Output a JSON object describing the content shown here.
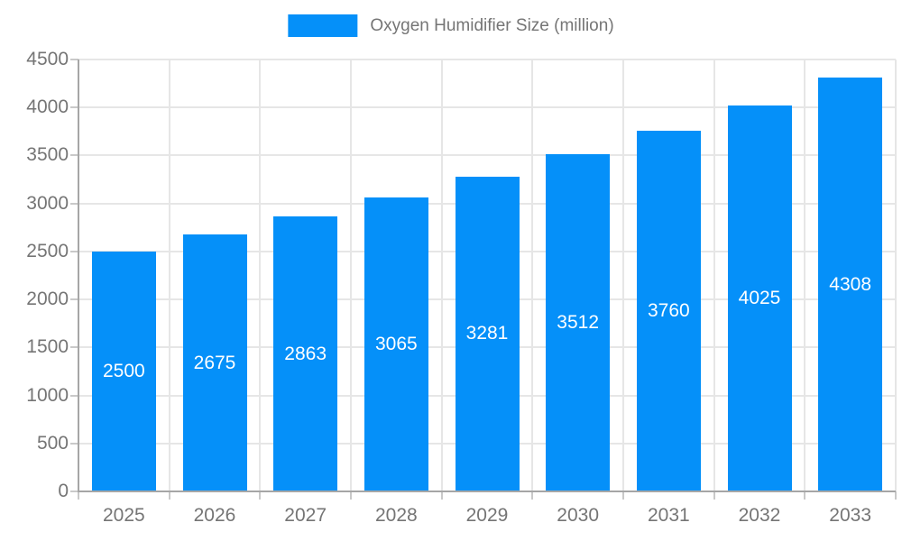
{
  "legend": {
    "label": "Oxygen Humidifier Size (million)"
  },
  "colors": {
    "bar": "#0590f9",
    "bar_label": "#ffffff",
    "axis_text": "#757575",
    "gridline": "#e6e6e6",
    "axis_line": "#a6a6a6"
  },
  "chart_data": {
    "type": "bar",
    "title": "",
    "legend_entries": [
      "Oxygen Humidifier Size (million)"
    ],
    "legend_position": "top",
    "categories": [
      "2025",
      "2026",
      "2027",
      "2028",
      "2029",
      "2030",
      "2031",
      "2032",
      "2033"
    ],
    "series": [
      {
        "name": "Oxygen Humidifier Size (million)",
        "values": [
          2500,
          2675,
          2863,
          3065,
          3281,
          3512,
          3760,
          4025,
          4308
        ]
      }
    ],
    "xlabel": "",
    "ylabel": "",
    "ylim": [
      0,
      4500
    ],
    "ytick_step": 500,
    "ytick_labels": [
      "0",
      "500",
      "1000",
      "1500",
      "2000",
      "2500",
      "3000",
      "3500",
      "4000",
      "4500"
    ],
    "grid": true,
    "data_labels": "inside-center-white"
  }
}
